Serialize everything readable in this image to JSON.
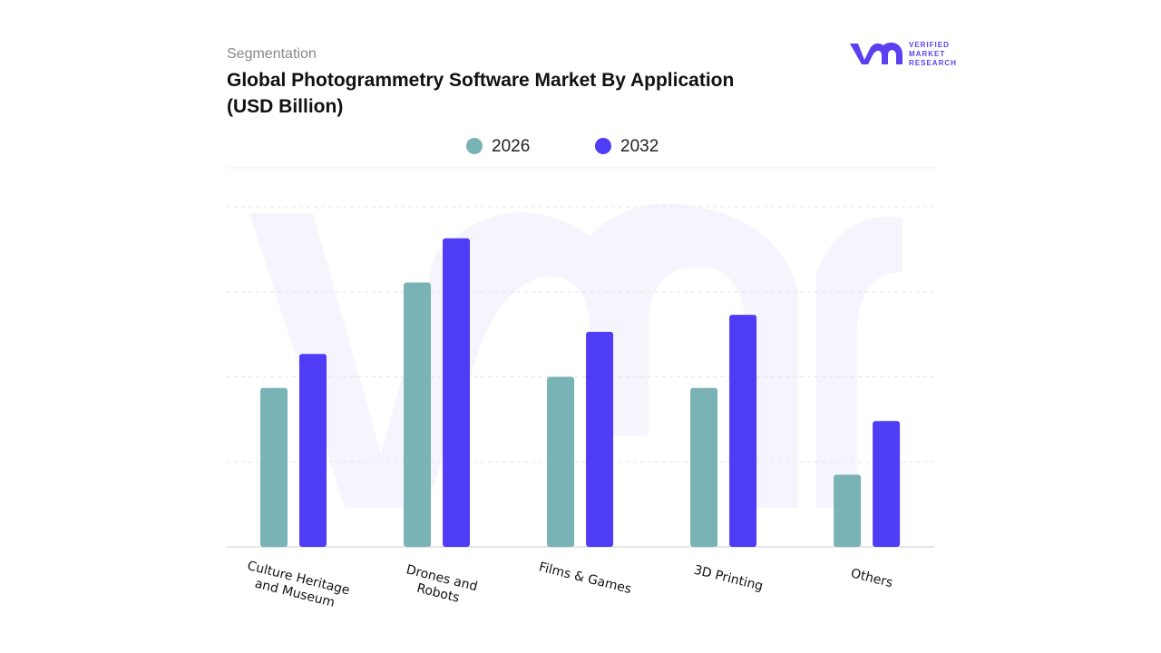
{
  "chart_data": {
    "type": "bar",
    "kicker": "Segmentation",
    "title": "Global Photogrammetry Software Market By Application (USD Billion)",
    "logo": {
      "line1": "VERIFIED",
      "line2": "MARKET",
      "line3": "RESEARCH"
    },
    "categories": [
      "Culture Heritage and Museum",
      "Drones and Robots",
      "Films & Games",
      "3D Printing",
      "Others"
    ],
    "series": [
      {
        "name": "2026",
        "color": "#7ab3b5",
        "values": [
          1.87,
          3.11,
          2.0,
          1.87,
          0.85
        ]
      },
      {
        "name": "2032",
        "color": "#4f3cf5",
        "values": [
          2.27,
          3.63,
          2.53,
          2.73,
          1.48
        ]
      }
    ],
    "ylim": [
      0,
      4
    ],
    "yticks": [
      1,
      2,
      3,
      4
    ],
    "grid": true
  }
}
